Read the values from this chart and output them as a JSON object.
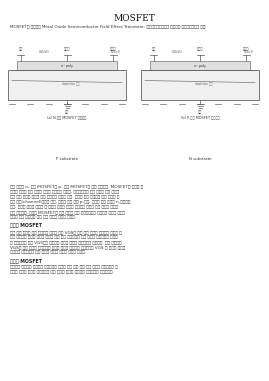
{
  "title": "MOSFET",
  "intro_line1": "MOSFET는 줄여쓰면 Metal Oxide Semiconductor Field Effect Transistor, 금속산화막반도체로 전계효과 트랜지스터라고 한다.",
  "diagram_a_label": "(a) N-채널 MOSFET 단면구조",
  "diagram_b_label": "(b) P-채널 MOSFET 단면구조",
  "substrate_a": "P substrate",
  "substrate_b": "N substrate",
  "body_lines": [
    "위의 그림은 n- 채널 MOSFET와 p- 채널 MOSFET의 단면 구조이다. MOSFET의 동작은 게",
    "이트와 실리콘 기판 사이에 전압을 인가하여 게이트, 산화막에서와 수직 방향과 전계 여기를",
    "오게 하면 실리콘 표면의 반전 캐리어가 보이게 된다. 이러한 반전 캐리어가 보인 실리콘 표",
    "면을 채널(channel)이라고 하며, 정공이 모인 경우 p-채널, 전자가 모인 경우를 n-채널이라",
    "한다. 게이트 전압이 이임계 때 소스와 드레인 사이의 체결형성 여부에 따라 전류를 유기함",
    "으로 구분한다. 유기형 MOSFET의 경우 소스에 대한 게이트전압이 이임계에 적합히 형성되",
    "어있지 않아 흐름만과 소스 선에 전류가 흐리지 않는다."
  ],
  "section1_title": "공핍형 MOSFET",
  "section1_lines": [
    "정과 음의 게이트 소스 전압에서 동작한 음의 VGS는 전지 오프 전압이 됩에까지 드레인 전",
    "류를 감소시켜 드레인 전류가 흐리지 않게 하고 전반적으는 음의 게이트 소스전압에 대해서",
    "는 부절대적이 왜냐 VGS값에 대해서는 드레인 전류는 계속적으로 흐겨린다. 확히 게이트는",
    "VGS의 부와 양전압 상태에서는 채널과 됨없이 이으으로 이바이스는 VGS 의 아채한 조성에",
    "대해서도 동작하면서 나노 경우나 게이트 전류는 흐리지 않는다."
  ],
  "section2_title": "증가형 MOSFET",
  "section2_lines": [
    "디바이스 구조에는 드레인과 소스사이에 채널을 갖고 있지 않고 영의 게이트 소스전압을 인",
    "가하면 게이트 아래의 기판경계에 있는 정공을 만으로 잡아내서 공핍형역을 발생시킨다."
  ],
  "bg_color": "#ffffff"
}
